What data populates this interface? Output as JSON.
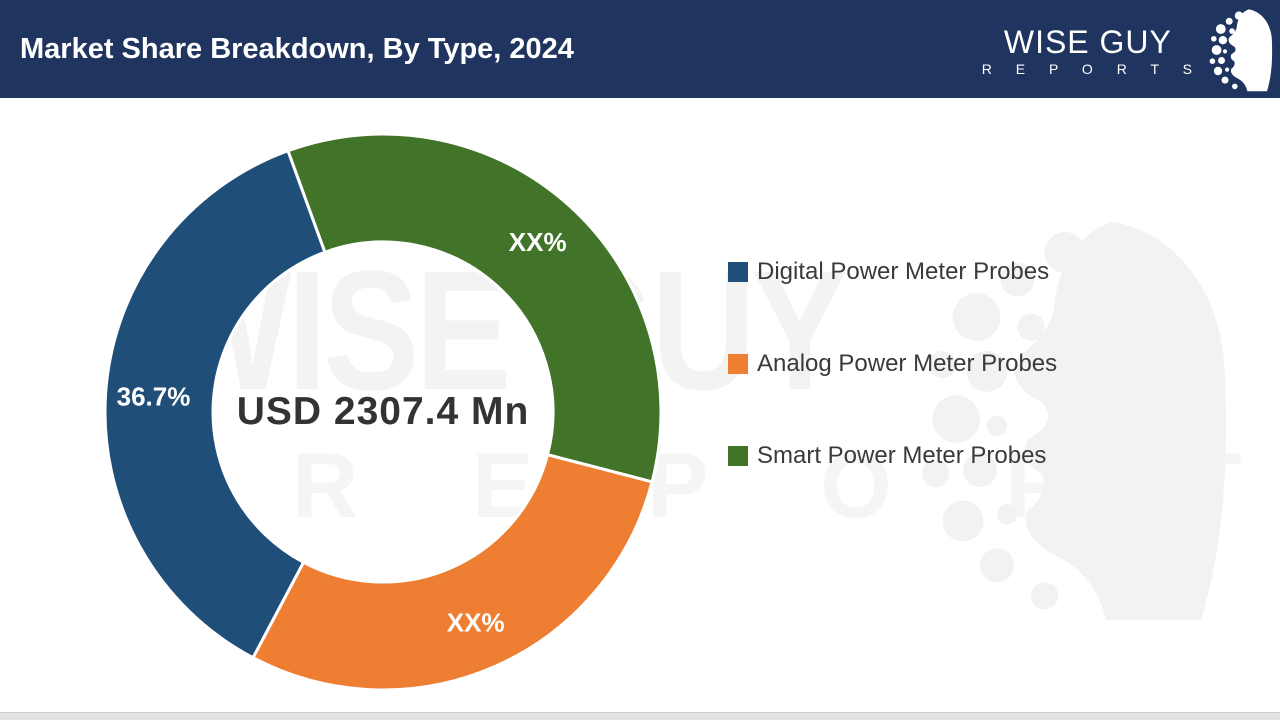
{
  "header": {
    "title": "Market Share Breakdown, By Type, 2024",
    "logo": {
      "line1": "WISE GUY",
      "line2": "R E P O R T S"
    }
  },
  "watermark": {
    "line1": "WISE GUY",
    "line2": "R E P O R T S"
  },
  "chart_data": {
    "type": "donut",
    "title": "Market Share Breakdown, By Type, 2024",
    "center_label": "USD 2307.4 Mn",
    "start_angle_deg": -20,
    "legend_position": "right",
    "segments": [
      {
        "label": "Smart Power Meter Probes",
        "value_pct": 34.6,
        "display_label": "XX%",
        "color": "#417329"
      },
      {
        "label": "Analog Power Meter Probes",
        "value_pct": 28.7,
        "display_label": "XX%",
        "color": "#EE7E32"
      },
      {
        "label": "Digital Power Meter Probes",
        "value_pct": 36.7,
        "display_label": "36.7%",
        "color": "#1F4E78"
      }
    ]
  },
  "legend": {
    "items": [
      {
        "label": "Digital Power Meter Probes",
        "color": "#1F4E78"
      },
      {
        "label": "Analog Power Meter Probes",
        "color": "#EE7E32"
      },
      {
        "label": "Smart Power Meter Probes",
        "color": "#417329"
      }
    ]
  },
  "colors": {
    "header_bg": "#1F345E",
    "blue": "#1F4E78",
    "orange": "#EE7E32",
    "green": "#417329",
    "center_text": "#333333",
    "watermark": "#f3f3f3"
  }
}
